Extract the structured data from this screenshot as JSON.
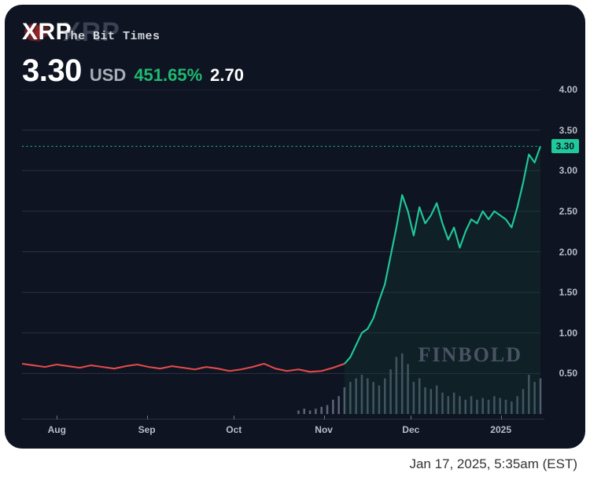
{
  "ticker": "XRP",
  "ticker_ghost": "XRP",
  "subtitle": "The Bit Times",
  "price": "3.30",
  "currency": "USD",
  "pct_change": "451.65%",
  "abs_change": "2.70",
  "pct_color": "#1fb972",
  "watermark": "FINBOLD",
  "timestamp": "Jan 17, 2025, 5:35am (EST)",
  "chart": {
    "type": "line-area",
    "background": "#0e1421",
    "grid_color": "#2a3142",
    "axis_label_color": "#b7bcc8",
    "line_color_down": "#e34a4a",
    "line_color_up": "#1fc99a",
    "area_fill": "#123a33",
    "area_opacity": 0.35,
    "line_width": 2,
    "last_dotted_color": "#1fc99a",
    "price_flag_bg": "#1fc99a",
    "price_flag_text": "3.30",
    "ylim": [
      0,
      4.0
    ],
    "yticks": [
      0.5,
      1.0,
      1.5,
      2.0,
      2.5,
      3.0,
      3.5,
      4.0
    ],
    "xlim": [
      0,
      180
    ],
    "xticks": [
      {
        "pos": 12,
        "label": "Aug"
      },
      {
        "pos": 43,
        "label": "Sep"
      },
      {
        "pos": 73,
        "label": "Oct"
      },
      {
        "pos": 104,
        "label": "Nov"
      },
      {
        "pos": 134,
        "label": "Dec"
      },
      {
        "pos": 165,
        "label": "2025"
      }
    ],
    "series_red": [
      [
        0,
        0.62
      ],
      [
        4,
        0.6
      ],
      [
        8,
        0.58
      ],
      [
        12,
        0.61
      ],
      [
        16,
        0.59
      ],
      [
        20,
        0.57
      ],
      [
        24,
        0.6
      ],
      [
        28,
        0.58
      ],
      [
        32,
        0.56
      ],
      [
        36,
        0.59
      ],
      [
        40,
        0.61
      ],
      [
        44,
        0.58
      ],
      [
        48,
        0.56
      ],
      [
        52,
        0.59
      ],
      [
        56,
        0.57
      ],
      [
        60,
        0.55
      ],
      [
        64,
        0.58
      ],
      [
        68,
        0.56
      ],
      [
        72,
        0.53
      ],
      [
        76,
        0.55
      ],
      [
        80,
        0.58
      ],
      [
        84,
        0.62
      ],
      [
        88,
        0.56
      ],
      [
        92,
        0.53
      ],
      [
        96,
        0.55
      ],
      [
        100,
        0.52
      ],
      [
        104,
        0.53
      ],
      [
        108,
        0.57
      ],
      [
        112,
        0.62
      ]
    ],
    "series_green": [
      [
        112,
        0.62
      ],
      [
        114,
        0.7
      ],
      [
        116,
        0.85
      ],
      [
        118,
        1.0
      ],
      [
        120,
        1.05
      ],
      [
        122,
        1.18
      ],
      [
        124,
        1.4
      ],
      [
        126,
        1.6
      ],
      [
        128,
        1.95
      ],
      [
        130,
        2.3
      ],
      [
        132,
        2.7
      ],
      [
        134,
        2.5
      ],
      [
        136,
        2.2
      ],
      [
        138,
        2.55
      ],
      [
        140,
        2.35
      ],
      [
        142,
        2.45
      ],
      [
        144,
        2.6
      ],
      [
        146,
        2.35
      ],
      [
        148,
        2.15
      ],
      [
        150,
        2.3
      ],
      [
        152,
        2.05
      ],
      [
        154,
        2.25
      ],
      [
        156,
        2.4
      ],
      [
        158,
        2.35
      ],
      [
        160,
        2.5
      ],
      [
        162,
        2.4
      ],
      [
        164,
        2.5
      ],
      [
        166,
        2.45
      ],
      [
        168,
        2.4
      ],
      [
        170,
        2.3
      ],
      [
        172,
        2.55
      ],
      [
        174,
        2.85
      ],
      [
        176,
        3.2
      ],
      [
        178,
        3.1
      ],
      [
        180,
        3.3
      ]
    ],
    "volume": [
      [
        96,
        0.02
      ],
      [
        98,
        0.03
      ],
      [
        100,
        0.02
      ],
      [
        102,
        0.03
      ],
      [
        104,
        0.04
      ],
      [
        106,
        0.05
      ],
      [
        108,
        0.08
      ],
      [
        110,
        0.1
      ],
      [
        112,
        0.15
      ],
      [
        114,
        0.18
      ],
      [
        116,
        0.2
      ],
      [
        118,
        0.22
      ],
      [
        120,
        0.2
      ],
      [
        122,
        0.18
      ],
      [
        124,
        0.16
      ],
      [
        126,
        0.2
      ],
      [
        128,
        0.25
      ],
      [
        130,
        0.32
      ],
      [
        132,
        0.34
      ],
      [
        134,
        0.28
      ],
      [
        136,
        0.18
      ],
      [
        138,
        0.2
      ],
      [
        140,
        0.15
      ],
      [
        142,
        0.14
      ],
      [
        144,
        0.16
      ],
      [
        146,
        0.12
      ],
      [
        148,
        0.1
      ],
      [
        150,
        0.12
      ],
      [
        152,
        0.1
      ],
      [
        154,
        0.08
      ],
      [
        156,
        0.1
      ],
      [
        158,
        0.08
      ],
      [
        160,
        0.09
      ],
      [
        162,
        0.08
      ],
      [
        164,
        0.1
      ],
      [
        166,
        0.09
      ],
      [
        168,
        0.08
      ],
      [
        170,
        0.07
      ],
      [
        172,
        0.1
      ],
      [
        174,
        0.14
      ],
      [
        176,
        0.22
      ],
      [
        178,
        0.18
      ],
      [
        180,
        0.2
      ]
    ],
    "volume_color": "#5a6378",
    "volume_scale": 1.0
  },
  "logo_color": "#b02a2a"
}
